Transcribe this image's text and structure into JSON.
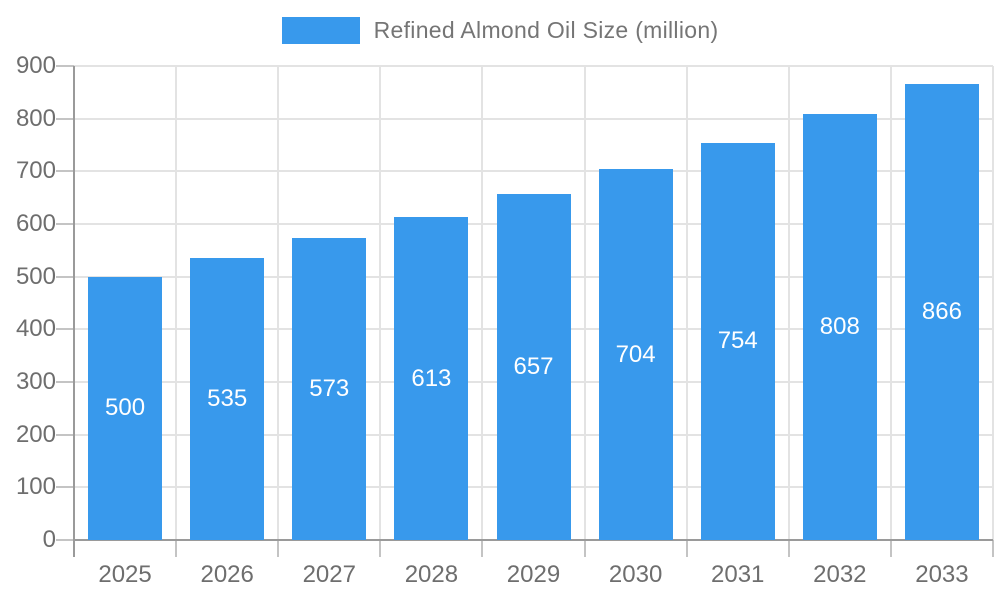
{
  "chart_data": {
    "type": "bar",
    "legend": "Refined Almond Oil Size (million)",
    "legend_position": "top",
    "categories": [
      "2025",
      "2026",
      "2027",
      "2028",
      "2029",
      "2030",
      "2031",
      "2032",
      "2033"
    ],
    "values": [
      500,
      535,
      573,
      613,
      657,
      704,
      754,
      808,
      866
    ],
    "xlabel": "",
    "ylabel": "",
    "ylim": [
      0,
      900
    ],
    "ytick_step": 100,
    "grid": true,
    "colors": {
      "bar": "#3899EC",
      "grid": "#e3e3e3",
      "axis_line": "#9a9a9a",
      "tick": "#c4c4c4",
      "axis_label": "#6e6e6e",
      "legend_text": "#757575",
      "value_label": "#ffffff"
    }
  }
}
